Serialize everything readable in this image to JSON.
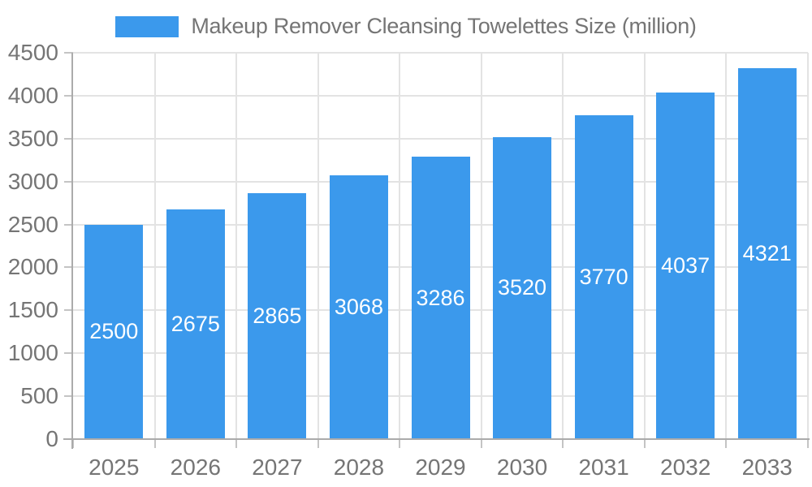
{
  "chart_data": {
    "type": "bar",
    "title": "Makeup Remover Cleansing Towelettes Size (million)",
    "categories": [
      "2025",
      "2026",
      "2027",
      "2028",
      "2029",
      "2030",
      "2031",
      "2032",
      "2033"
    ],
    "values": [
      2500,
      2675,
      2865,
      3068,
      3286,
      3520,
      3770,
      4037,
      4321
    ],
    "xlabel": "",
    "ylabel": "",
    "ylim": [
      0,
      4500
    ],
    "ytick_step": 500,
    "yticks": [
      0,
      500,
      1000,
      1500,
      2000,
      2500,
      3000,
      3500,
      4000,
      4500
    ],
    "grid": true,
    "legend_position": "top-center",
    "value_label_position": "inside-center",
    "colors": {
      "bar": "#3b99ec",
      "grid_line": "#e3e3e3",
      "axis_line": "#ababab",
      "tick": "#c4c4c4",
      "axis_text": "#757575",
      "value_label_text": "#ffffff",
      "background": "#ffffff"
    }
  }
}
